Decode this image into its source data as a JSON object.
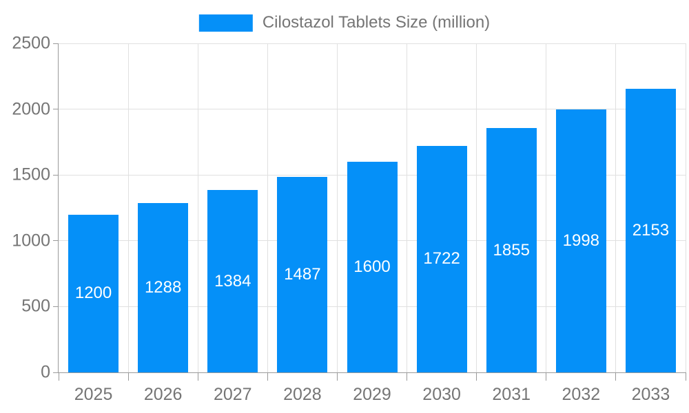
{
  "legend": {
    "label": "Cilostazol Tablets Size (million)"
  },
  "chart_data": {
    "type": "bar",
    "title": "Cilostazol Tablets Size (million)",
    "categories": [
      "2025",
      "2026",
      "2027",
      "2028",
      "2029",
      "2030",
      "2031",
      "2032",
      "2033"
    ],
    "values": [
      1200,
      1288,
      1384,
      1487,
      1600,
      1722,
      1855,
      1998,
      2153
    ],
    "series_name": "Cilostazol Tablets Size (million)",
    "xlabel": "",
    "ylabel": "",
    "ylim": [
      0,
      2500
    ],
    "yticks": [
      0,
      500,
      1000,
      1500,
      2000,
      2500
    ],
    "grid": true,
    "legend_position": "top-center",
    "value_labels": "inside-center",
    "colors": {
      "bar": "#0590f8",
      "value_label": "#ffffff",
      "tick_label": "#757575",
      "axis_line": "#999999",
      "gridline": "#e0e0e0",
      "background": "#ffffff"
    }
  }
}
